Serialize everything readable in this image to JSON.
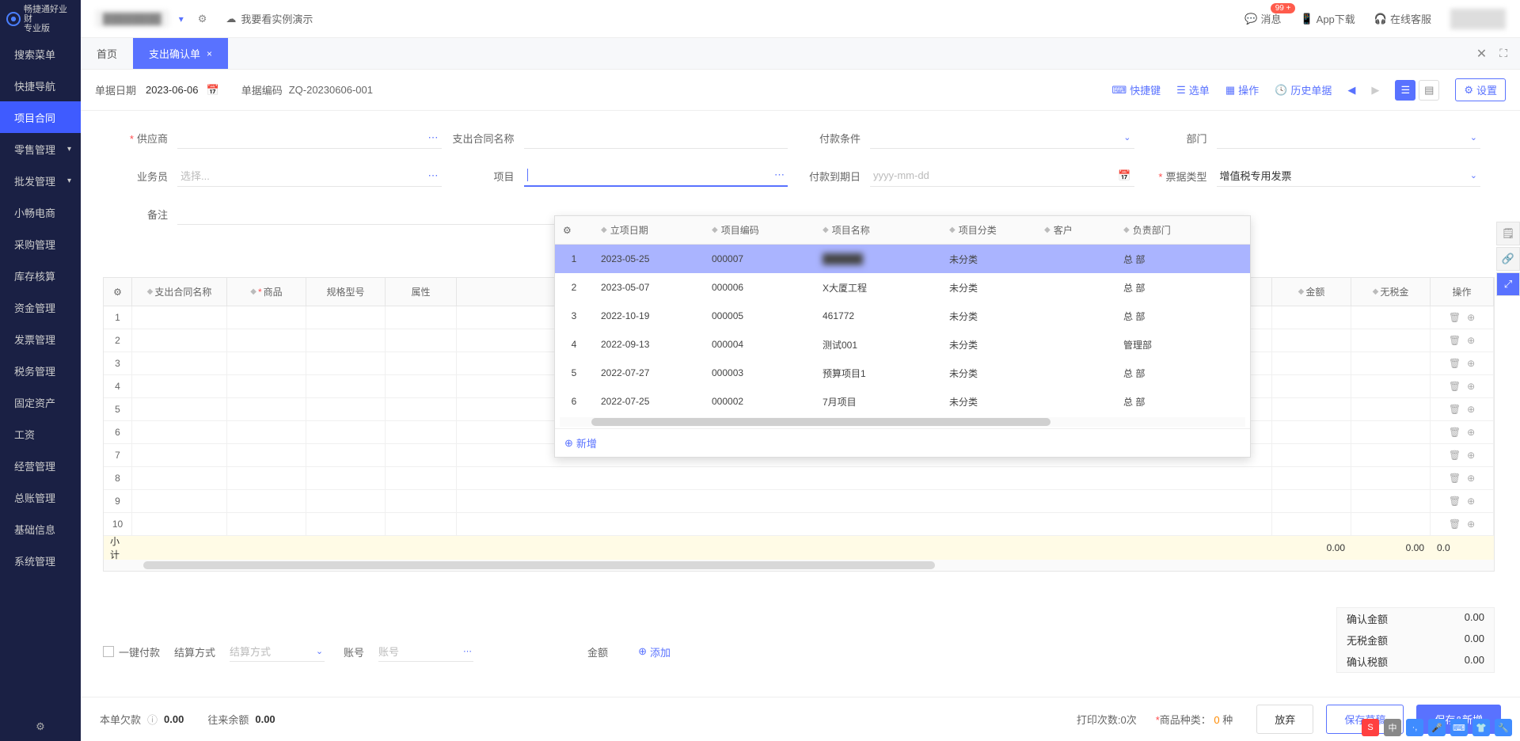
{
  "brand": {
    "name": "畅捷通好业财",
    "edition": "专业版"
  },
  "sidebar": {
    "items": [
      {
        "label": "搜索菜单",
        "expand": false
      },
      {
        "label": "快捷导航",
        "expand": false
      },
      {
        "label": "项目合同",
        "expand": false,
        "active": true
      },
      {
        "label": "零售管理",
        "expand": true
      },
      {
        "label": "批发管理",
        "expand": true
      },
      {
        "label": "小畅电商",
        "expand": false
      },
      {
        "label": "采购管理",
        "expand": false
      },
      {
        "label": "库存核算",
        "expand": false
      },
      {
        "label": "资金管理",
        "expand": false
      },
      {
        "label": "发票管理",
        "expand": false
      },
      {
        "label": "税务管理",
        "expand": false
      },
      {
        "label": "固定资产",
        "expand": false
      },
      {
        "label": "工资",
        "expand": false
      },
      {
        "label": "经营管理",
        "expand": false
      },
      {
        "label": "总账管理",
        "expand": false
      },
      {
        "label": "基础信息",
        "expand": false
      },
      {
        "label": "系统管理",
        "expand": false
      }
    ]
  },
  "header": {
    "tenant": "████████",
    "demo_link": "我要看实例演示",
    "messages_label": "消息",
    "messages_badge": "99 +",
    "app_download": "App下载",
    "support": "在线客服"
  },
  "tabs": {
    "home": "首页",
    "active": "支出确认单"
  },
  "toolbar": {
    "date_label": "单据日期",
    "date_value": "2023-06-06",
    "code_label": "单据编码",
    "code_value": "ZQ-20230606-001",
    "shortcut": "快捷键",
    "select_doc": "选单",
    "operate": "操作",
    "history": "历史单据",
    "settings": "设置"
  },
  "form": {
    "supplier_label": "供应商",
    "contract_name_label": "支出合同名称",
    "pay_terms_label": "付款条件",
    "dept_label": "部门",
    "clerk_label": "业务员",
    "clerk_placeholder": "选择...",
    "project_label": "项目",
    "pay_due_label": "付款到期日",
    "pay_due_placeholder": "yyyy-mm-dd",
    "invoice_type_label": "票据类型",
    "invoice_type_value": "增值税专用发票",
    "remark_label": "备注"
  },
  "project_dropdown": {
    "columns": {
      "date": "立项日期",
      "code": "项目编码",
      "name": "项目名称",
      "category": "项目分类",
      "customer": "客户",
      "dept": "负责部门"
    },
    "rows": [
      {
        "idx": 1,
        "date": "2023-05-25",
        "code": "000007",
        "name": "██████",
        "category": "未分类",
        "customer": "",
        "dept": "总 部",
        "selected": true,
        "blur_name": true
      },
      {
        "idx": 2,
        "date": "2023-05-07",
        "code": "000006",
        "name": "X大厦工程",
        "category": "未分类",
        "customer": "",
        "dept": "总 部"
      },
      {
        "idx": 3,
        "date": "2022-10-19",
        "code": "000005",
        "name": "461772",
        "category": "未分类",
        "customer": "",
        "dept": "总 部"
      },
      {
        "idx": 4,
        "date": "2022-09-13",
        "code": "000004",
        "name": "测试001",
        "category": "未分类",
        "customer": "",
        "dept": "管理部"
      },
      {
        "idx": 5,
        "date": "2022-07-27",
        "code": "000003",
        "name": "预算项目1",
        "category": "未分类",
        "customer": "",
        "dept": "总 部"
      },
      {
        "idx": 6,
        "date": "2022-07-25",
        "code": "000002",
        "name": "7月项目",
        "category": "未分类",
        "customer": "",
        "dept": "总 部"
      }
    ],
    "add_label": "新增"
  },
  "grid": {
    "columns": {
      "contract": "支出合同名称",
      "product": "商品",
      "spec": "规格型号",
      "attr": "属性",
      "amount": "金额",
      "notax": "无税金",
      "ops": "操作"
    },
    "row_count": 10,
    "subtotal_label": "小计",
    "subtotal_amount": "0.00",
    "subtotal_notax": "0.00",
    "subtotal_extra": "0.0"
  },
  "settle": {
    "onekey_label": "一键付款",
    "method_label": "结算方式",
    "method_placeholder": "结算方式",
    "account_label": "账号",
    "account_placeholder": "账号",
    "amount_label": "金额",
    "add_label": "添加"
  },
  "totals": {
    "confirm_amount_label": "确认金额",
    "confirm_amount_value": "0.00",
    "notax_amount_label": "无税金额",
    "notax_amount_value": "0.00",
    "confirm_tax_label": "确认税额",
    "confirm_tax_value": "0.00"
  },
  "footer": {
    "owe_label": "本单欠款",
    "owe_value": "0.00",
    "balance_label": "往来余额",
    "balance_value": "0.00",
    "print_count_label": "打印次数:",
    "print_count_value": "0次",
    "product_kinds_label": "商品种类：",
    "product_kinds_value": "0",
    "product_kinds_unit": "种",
    "abandon": "放弃",
    "save_draft": "保存草稿",
    "save_new": "保存&新增"
  }
}
